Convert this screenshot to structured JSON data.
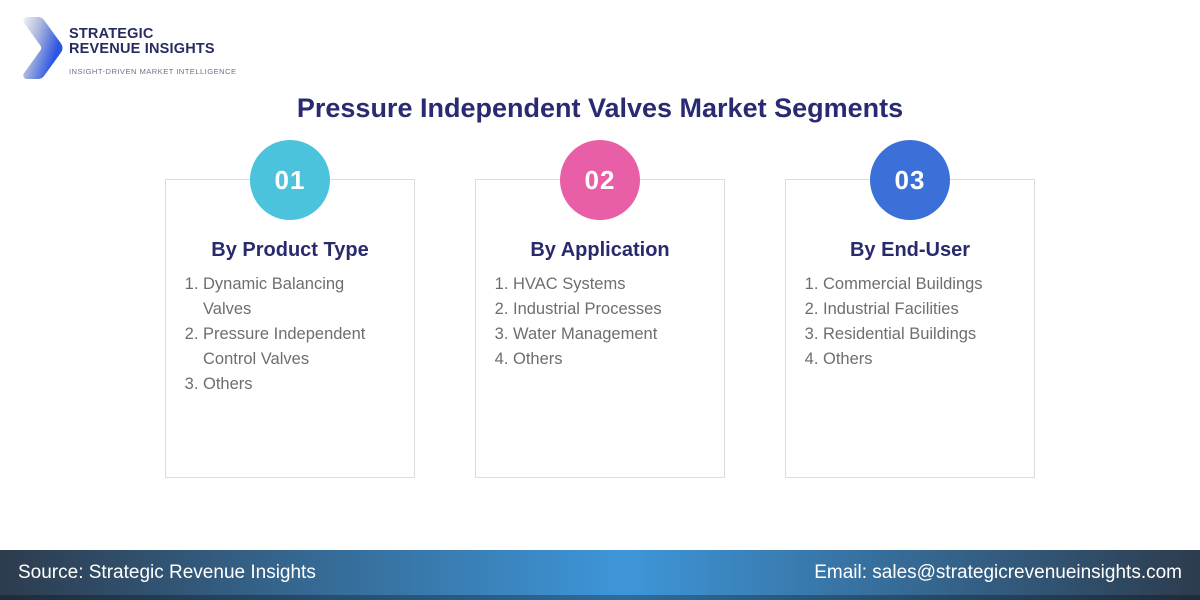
{
  "logo": {
    "icon": "chevron-arrow-icon",
    "line1": "STRATEGIC",
    "line2": "REVENUE INSIGHTS",
    "tagline": "INSIGHT-DRIVEN MARKET INTELLIGENCE"
  },
  "title": "Pressure Independent Valves Market Segments",
  "cards": [
    {
      "number": "01",
      "badge_color": "#4bc3dc",
      "heading": "By Product Type",
      "items": [
        "Dynamic Balancing Valves",
        "Pressure Independent Control Valves",
        "Others"
      ]
    },
    {
      "number": "02",
      "badge_color": "#e95fa7",
      "heading": "By Application",
      "items": [
        "HVAC Systems",
        "Industrial Processes",
        "Water Management",
        "Others"
      ]
    },
    {
      "number": "03",
      "badge_color": "#3a70d7",
      "heading": "By End-User",
      "items": [
        "Commercial Buildings",
        "Industrial Facilities",
        "Residential Buildings",
        "Others"
      ]
    }
  ],
  "footer": {
    "source": "Source: Strategic Revenue Insights",
    "email": "Email: sales@strategicrevenueinsights.com"
  },
  "colors": {
    "title_navy": "#2a2a72",
    "heading_navy": "#29296e",
    "list_gray": "#6e6e6e",
    "card_border": "#dcdcdc",
    "badge_cyan": "#4bc3dc",
    "badge_pink": "#e95fa7",
    "badge_blue": "#3a70d7",
    "footer_edge": "#2d3c4e",
    "footer_center": "#3e96d9",
    "logo_blue": "#2b55e2"
  }
}
